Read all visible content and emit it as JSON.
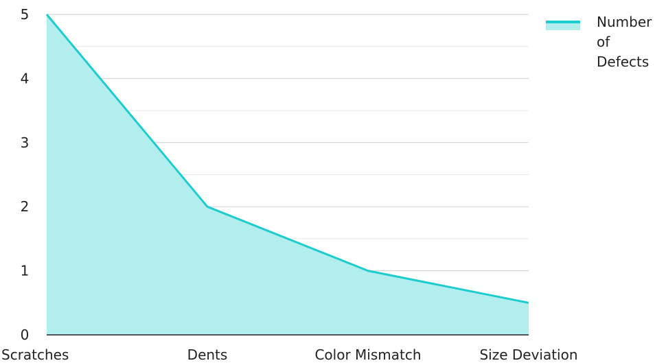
{
  "chart_data": {
    "type": "area",
    "categories": [
      "Scratches",
      "Dents",
      "Color Mismatch",
      "Size Deviation"
    ],
    "series": [
      {
        "name": "Number of Defects",
        "values": [
          5,
          2,
          1,
          0.5
        ],
        "line_color": "#1dcccf",
        "fill_color": "#b2eeee"
      }
    ],
    "ylim": [
      0,
      5
    ],
    "y_ticks": [
      "0",
      "1",
      "2",
      "3",
      "4",
      "5"
    ],
    "grid": true,
    "legend_position": "top-right"
  },
  "colors": {
    "grid": "#dddddd",
    "axis": "#222222"
  }
}
